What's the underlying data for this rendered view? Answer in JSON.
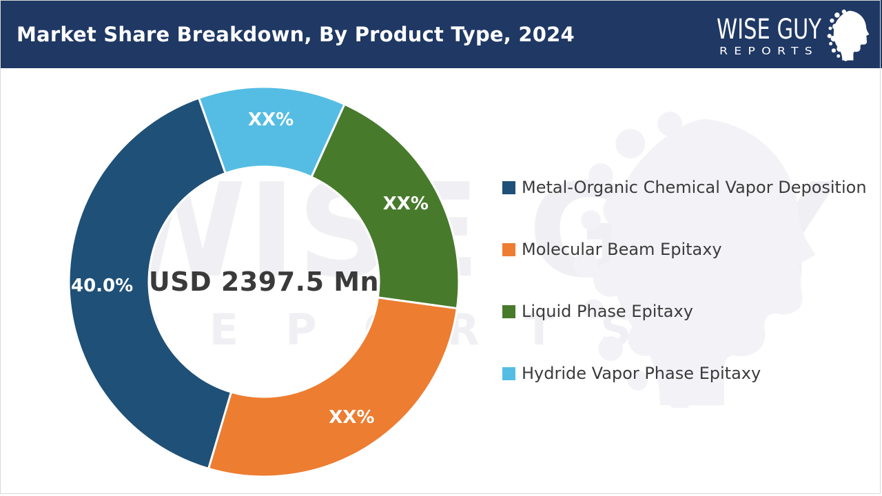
{
  "header": {
    "title": "Market Share Breakdown, By Product Type, 2024",
    "logo_line1": "WISE GUY",
    "logo_line2": "REPORTS"
  },
  "watermark": {
    "line1": "WISE GUY",
    "line2": "REPORTS"
  },
  "chart_data": {
    "type": "pie",
    "donut": true,
    "title": "Market Share Breakdown, By Product Type, 2024",
    "center_label": "USD 2397.5 Mn",
    "start_angle_deg": 196.5,
    "inner_radius_ratio": 0.59,
    "legend_position": "right",
    "slices": [
      {
        "name": "Metal-Organic Chemical Vapor Deposition",
        "value": 40.0,
        "label": "40.0%",
        "color": "#1f5077"
      },
      {
        "name": "Hydride Vapor Phase Epitaxy",
        "value": 12.2,
        "label": "XX%",
        "color": "#55bde4"
      },
      {
        "name": "Liquid Phase Epitaxy",
        "value": 20.4,
        "label": "XX%",
        "color": "#487a2c"
      },
      {
        "name": "Molecular Beam Epitaxy",
        "value": 27.4,
        "label": "XX%",
        "color": "#ed7d31"
      }
    ],
    "legend_order": [
      "Metal-Organic Chemical Vapor Deposition",
      "Molecular Beam Epitaxy",
      "Liquid Phase Epitaxy",
      "Hydride Vapor Phase Epitaxy"
    ]
  },
  "colors": {
    "header_bg": "#1f3864",
    "frame_border": "#d8d8d8",
    "center_text": "#3a3a3a",
    "legend_text": "#3b3b3b",
    "watermark": "#f0f0f4"
  }
}
